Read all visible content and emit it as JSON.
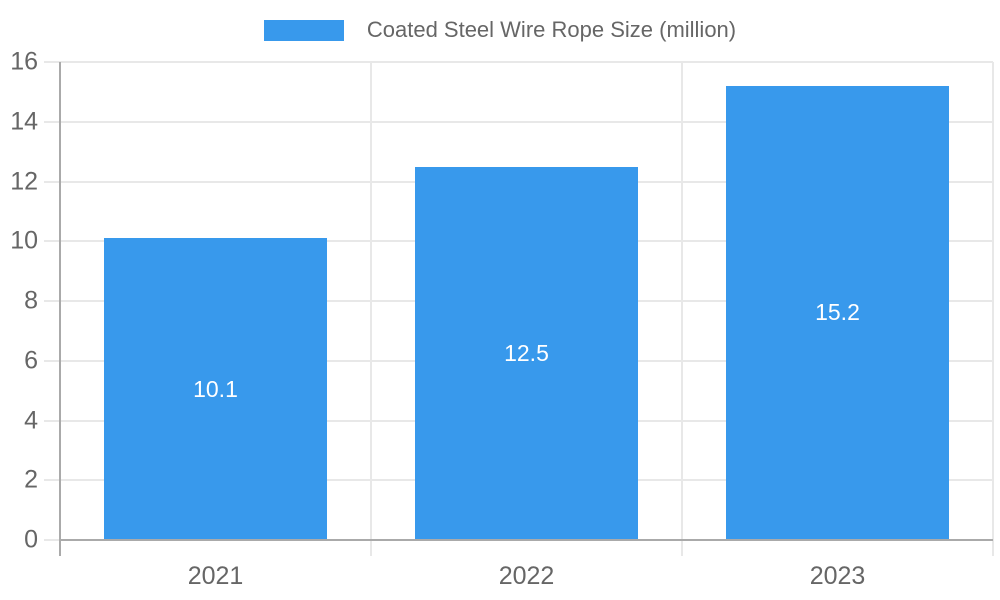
{
  "chart_data": {
    "type": "bar",
    "title": "",
    "categories": [
      "2021",
      "2022",
      "2023"
    ],
    "series": [
      {
        "name": "Coated Steel Wire Rope Size (million)",
        "values": [
          10.1,
          12.5,
          15.2
        ]
      }
    ],
    "data_labels": [
      "10.1",
      "12.5",
      "15.2"
    ],
    "xlabel": "",
    "ylabel": "",
    "y_axis": {
      "min": 0,
      "max": 16,
      "step": 2,
      "tick_labels": [
        "0",
        "2",
        "4",
        "6",
        "8",
        "10",
        "12",
        "14",
        "16"
      ]
    },
    "grid": true,
    "legend_position": "top",
    "bar_fraction_of_category": 0.72,
    "colors": {
      "bar": "#3899EC",
      "grid": "#e8e8e8",
      "axis": "#aaaaaa",
      "tick_text": "#666666",
      "legend_text": "#666666",
      "data_label_text": "#ffffff",
      "background": "#ffffff"
    }
  }
}
